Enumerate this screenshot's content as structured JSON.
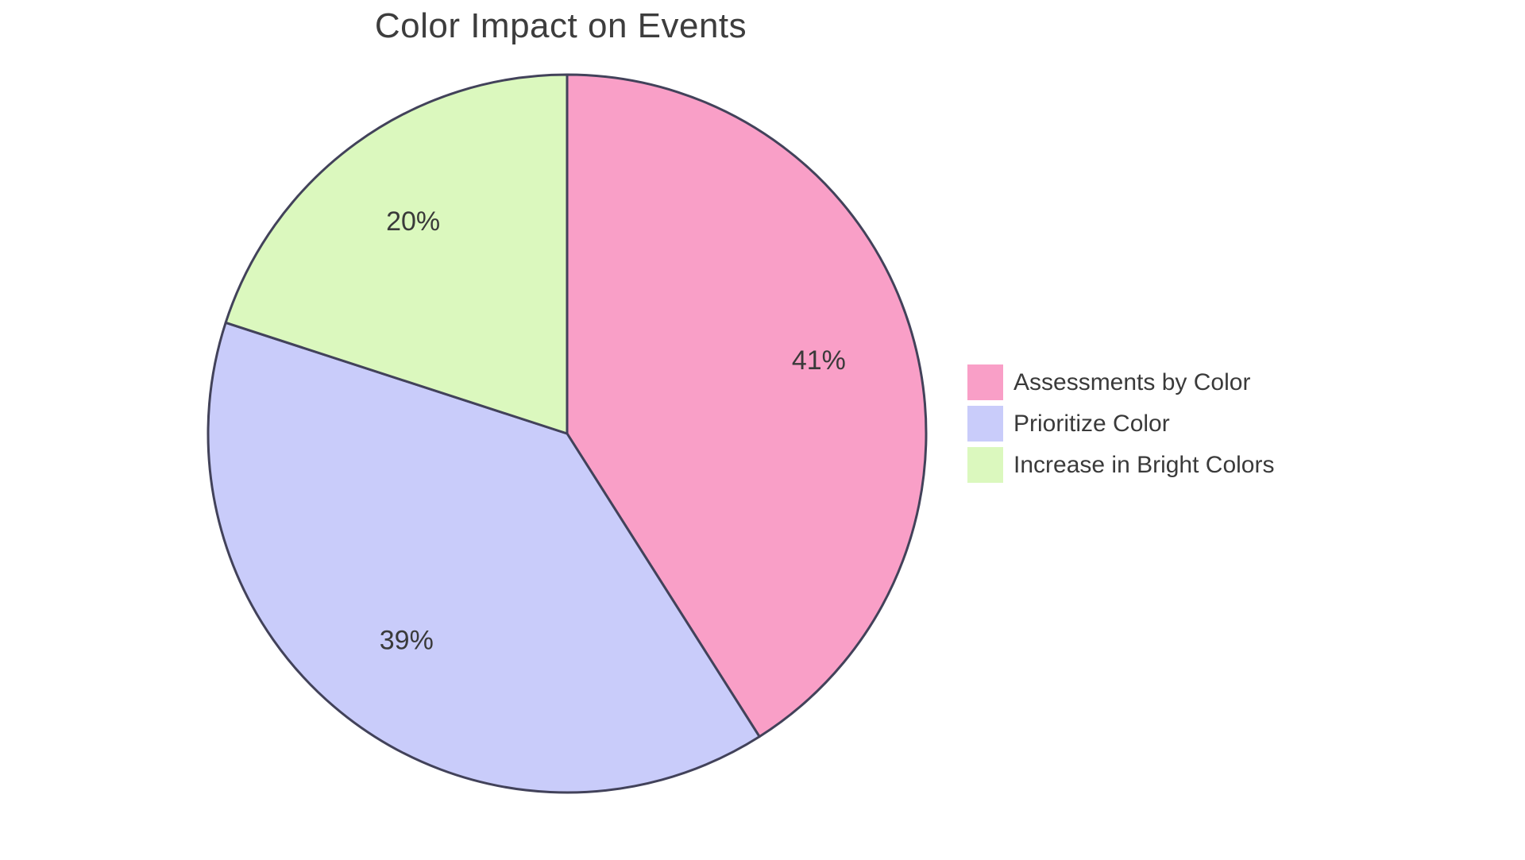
{
  "chart_data": {
    "type": "pie",
    "title": "Color Impact on Events",
    "slices": [
      {
        "label": "Assessments by Color",
        "value": 41,
        "pct_label": "41%",
        "color": "#F99FC7"
      },
      {
        "label": "Prioritize Color",
        "value": 39,
        "pct_label": "39%",
        "color": "#C9CCFA"
      },
      {
        "label": "Increase in Bright Colors",
        "value": 20,
        "pct_label": "20%",
        "color": "#DBF8BE"
      }
    ],
    "start_angle_deg": 0,
    "direction": "clockwise",
    "legend_position": "right",
    "grid": false,
    "stroke_color": "#42425A",
    "stroke_width": 3,
    "label_color": "#3A3A3A",
    "title_color": "#3D3D3D",
    "background_color": "#FFFFFF",
    "pct_label_radius_fraction": 0.73
  }
}
